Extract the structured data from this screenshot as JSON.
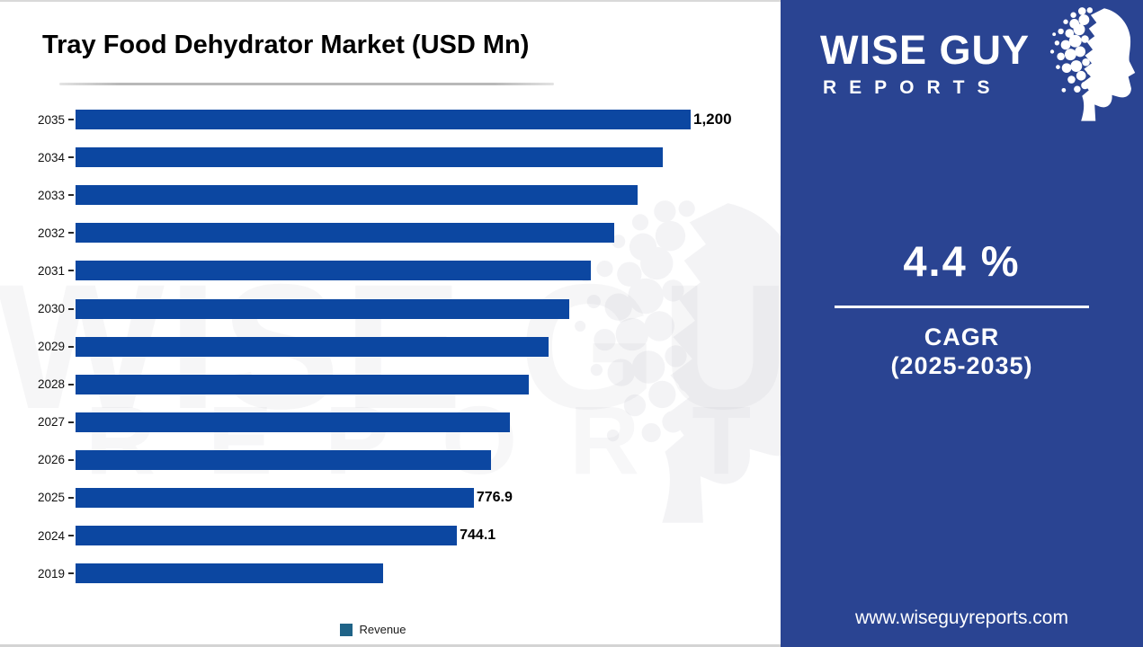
{
  "title": "Tray Food Dehydrator Market (USD Mn)",
  "chart_data": {
    "type": "bar",
    "orientation": "horizontal",
    "title": "Tray Food Dehydrator Market (USD Mn)",
    "xlabel": "",
    "ylabel": "",
    "grid": false,
    "legend_position": "bottom",
    "xlim": [
      0,
      1230
    ],
    "categories": [
      "2035",
      "2034",
      "2033",
      "2032",
      "2031",
      "2030",
      "2029",
      "2028",
      "2027",
      "2026",
      "2025",
      "2024",
      "2019"
    ],
    "values": [
      1200,
      1145,
      1097,
      1050,
      1006,
      964,
      923,
      884,
      847,
      811,
      776.9,
      744.1,
      600
    ],
    "value_labels": [
      "1,200",
      "",
      "",
      "",
      "",
      "",
      "",
      "",
      "",
      "",
      "776.9",
      "744.1",
      ""
    ],
    "bar_color": "#0c47a1",
    "legend": [
      {
        "label": "Revenue",
        "color": "#1f6387"
      }
    ]
  },
  "watermark": {
    "line1": "WISE GUY",
    "line2": "REPORTS"
  },
  "sidebar": {
    "logo_line1": "WISE GUY",
    "logo_line2": "REPORTS",
    "cagr_value": "4.4 %",
    "cagr_label": "CAGR",
    "cagr_period": "(2025-2035)",
    "website": "www.wiseguyreports.com"
  },
  "colors": {
    "panel_bg": "#2a4492",
    "bar": "#0c47a1",
    "legend_swatch": "#1f6387",
    "title_text": "#000000",
    "panel_text": "#ffffff"
  }
}
